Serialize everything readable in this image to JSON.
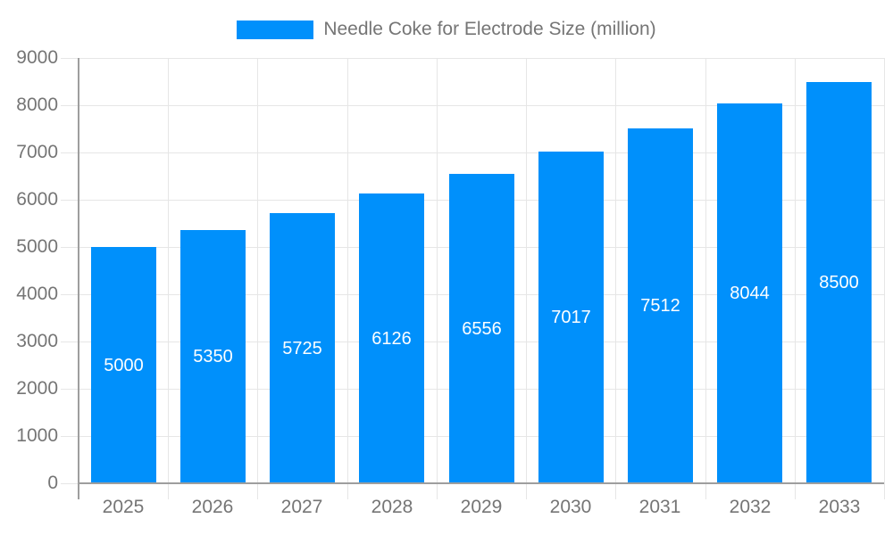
{
  "chart_data": {
    "type": "bar",
    "title": "",
    "series_name": "Needle Coke for Electrode Size (million)",
    "categories": [
      "2025",
      "2026",
      "2027",
      "2028",
      "2029",
      "2030",
      "2031",
      "2032",
      "2033"
    ],
    "values": [
      5000,
      5350,
      5725,
      6126,
      6556,
      7017,
      7512,
      8044,
      8500
    ],
    "xlabel": "",
    "ylabel": "",
    "ylim": [
      0,
      9000
    ],
    "ytick_step": 1000,
    "grid": "on",
    "legend_position": "top",
    "bar_color": "#0090FB",
    "bar_label_color": "#ffffff",
    "axis_text_color": "#757575",
    "grid_color": "#e6e6e6",
    "axis_line_color": "#9e9e9e",
    "background_color": "#ffffff"
  }
}
